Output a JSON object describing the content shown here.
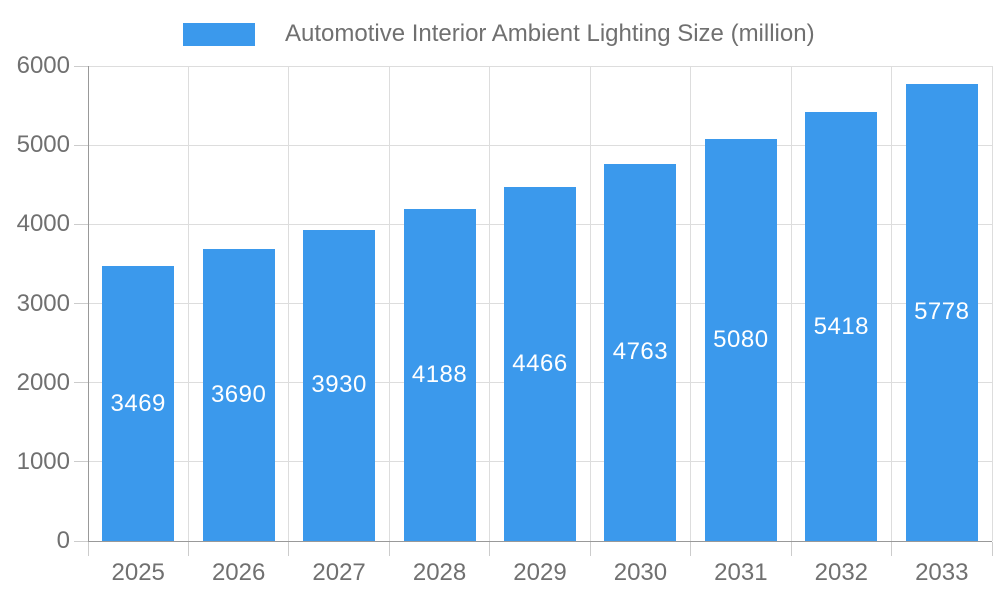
{
  "chart_data": {
    "type": "bar",
    "legend_label": "Automotive Interior Ambient Lighting Size (million)",
    "categories": [
      "2025",
      "2026",
      "2027",
      "2028",
      "2029",
      "2030",
      "2031",
      "2032",
      "2033"
    ],
    "values": [
      3469,
      3690,
      3930,
      4188,
      4466,
      4763,
      5080,
      5418,
      5778
    ],
    "ylim": [
      0,
      6000
    ],
    "y_ticks": [
      0,
      1000,
      2000,
      3000,
      4000,
      5000,
      6000
    ],
    "grid": true,
    "legend_position": "top",
    "colors": {
      "bar": "#3B99EC",
      "grid": "#DDDDDD",
      "axis": "#999999",
      "tick": "#CCCCCC",
      "text": "#707070",
      "bar_label": "#FFFFFF",
      "background": "#FFFFFF"
    }
  }
}
